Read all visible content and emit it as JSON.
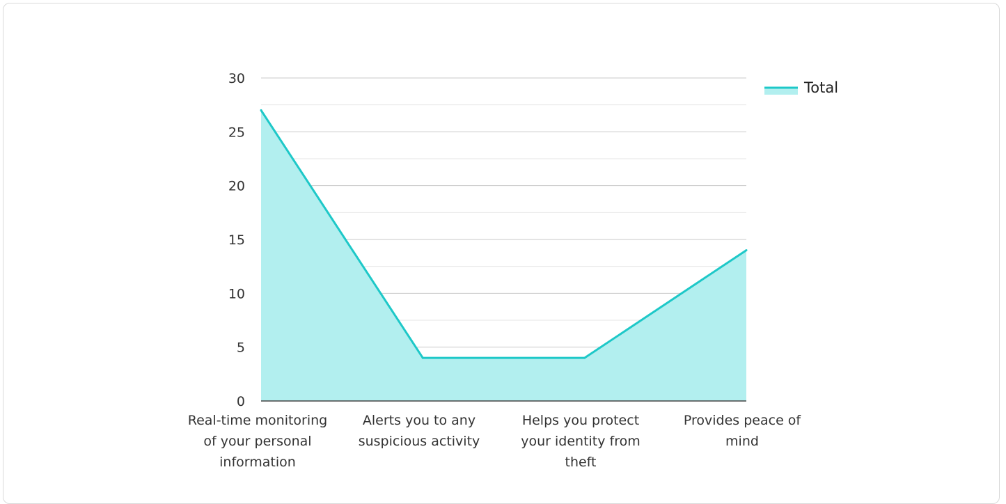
{
  "chart_data": {
    "type": "area",
    "title": "",
    "xlabel": "",
    "ylabel": "",
    "categories": [
      "Real-time monitoring of your personal information",
      "Alerts you to any suspicious activity",
      "Helps you protect your identity from theft",
      "Provides peace of mind"
    ],
    "series": [
      {
        "name": "Total",
        "values": [
          27,
          4,
          4,
          14
        ]
      }
    ],
    "ylim": [
      0,
      30
    ],
    "yticks": [
      0,
      5,
      10,
      15,
      20,
      25,
      30
    ],
    "grid": true,
    "legend": "top-right",
    "colors": {
      "line": "#1ec8c8",
      "fill": "#b2efef",
      "grid_major": "#c8c8c8",
      "grid_minor": "#e6e6e6",
      "axis": "#444444"
    }
  }
}
